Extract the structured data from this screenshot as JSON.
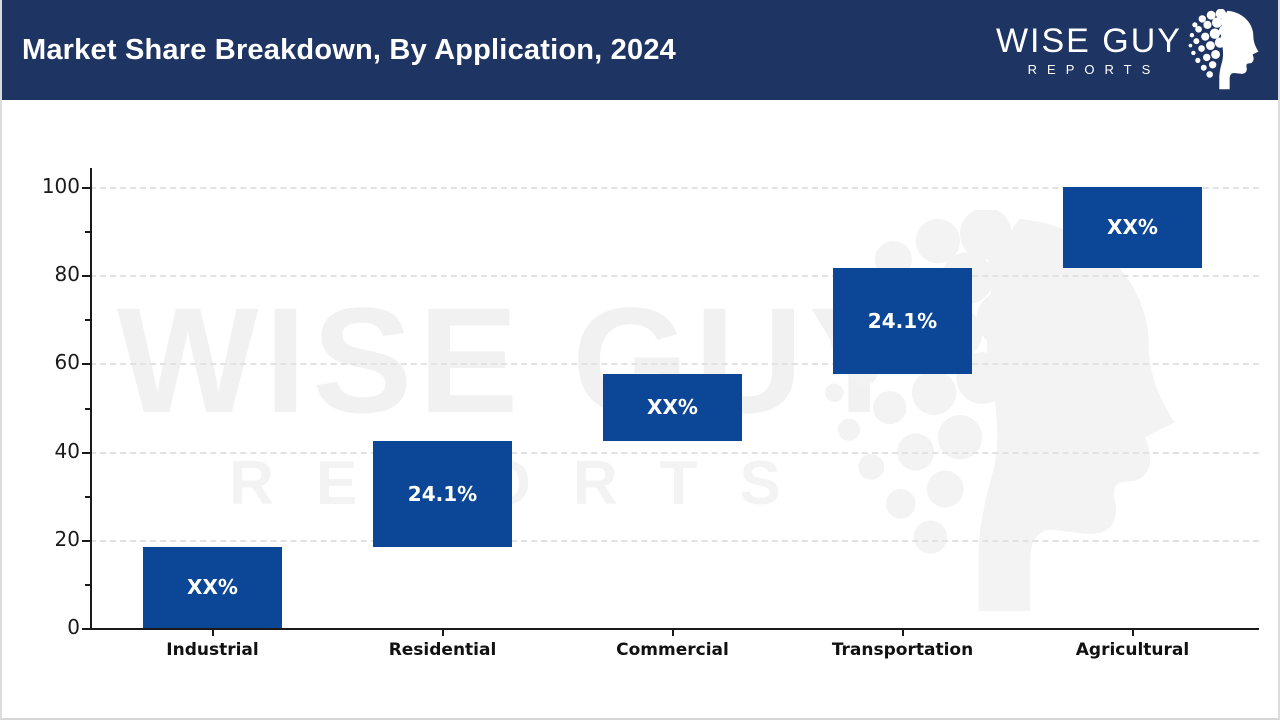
{
  "header": {
    "title": "Market Share Breakdown, By Application, 2024",
    "logo_line1": "WISE GUY",
    "logo_line2": "REPORTS",
    "bg_color": "#1e3463"
  },
  "watermark": {
    "line1": "WISE GUY",
    "line2": "REPORTS"
  },
  "chart_data": {
    "type": "bar",
    "subtype": "floating stacked percentage segments",
    "title": "Market Share Breakdown, By Application, 2024",
    "categories": [
      "Industrial",
      "Residential",
      "Commercial",
      "Transportation",
      "Agricultural"
    ],
    "segments": [
      {
        "category": "Industrial",
        "start": 0,
        "end": 18.4,
        "label": "XX%"
      },
      {
        "category": "Residential",
        "start": 18.4,
        "end": 42.5,
        "label": "24.1%"
      },
      {
        "category": "Commercial",
        "start": 42.5,
        "end": 57.6,
        "label": "XX%"
      },
      {
        "category": "Transportation",
        "start": 57.6,
        "end": 81.7,
        "label": "24.1%"
      },
      {
        "category": "Agricultural",
        "start": 81.7,
        "end": 100,
        "label": "XX%"
      }
    ],
    "yticks": [
      0,
      20,
      40,
      60,
      80,
      100
    ],
    "minor_yticks": [
      10,
      30,
      50,
      70,
      90
    ],
    "ylim": [
      0,
      100
    ],
    "xlabel": "",
    "ylabel": "",
    "bar_color": "#0b4697",
    "grid": "horizontal dashed",
    "legend": "none"
  }
}
